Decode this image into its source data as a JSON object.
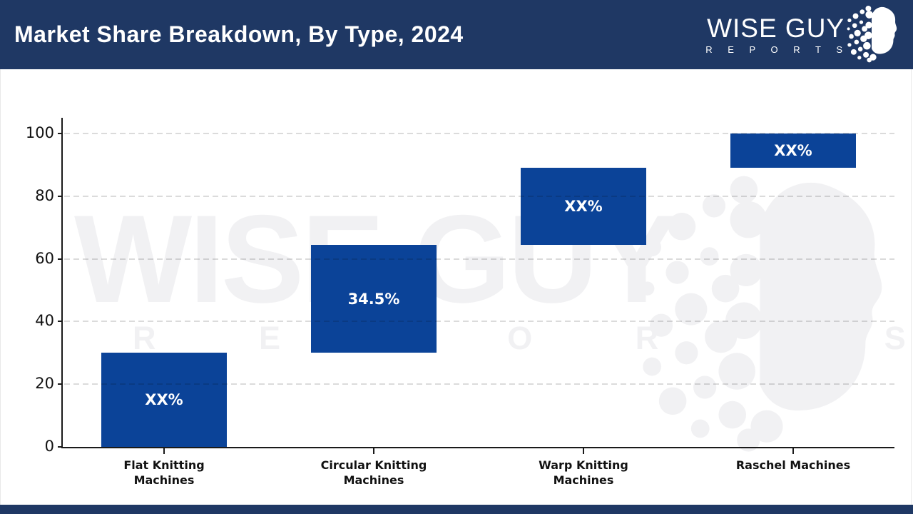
{
  "header": {
    "title": "Market Share Breakdown, By Type, 2024",
    "logo": {
      "name": "WISE GUY",
      "tagline": "R E P O R T S"
    }
  },
  "watermark": {
    "name": "WISE GUY",
    "tagline": "R E P O R T S"
  },
  "chart_data": {
    "type": "bar",
    "subtype": "waterfall",
    "title": "Market Share Breakdown, By Type, 2024",
    "categories": [
      "Flat Knitting Machines",
      "Circular Knitting Machines",
      "Warp Knitting Machines",
      "Raschel Machines"
    ],
    "bars": [
      {
        "category": "Flat Knitting Machines",
        "start": 0,
        "end": 30,
        "label": "XX%"
      },
      {
        "category": "Circular Knitting Machines",
        "start": 30,
        "end": 64.5,
        "label": "34.5%"
      },
      {
        "category": "Warp Knitting Machines",
        "start": 64.5,
        "end": 89,
        "label": "XX%"
      },
      {
        "category": "Raschel Machines",
        "start": 89,
        "end": 100,
        "label": "XX%"
      }
    ],
    "yticks": [
      0,
      20,
      40,
      60,
      80,
      100
    ],
    "ylim": [
      0,
      105
    ],
    "xlabel": "",
    "ylabel": "",
    "grid": "horizontal-dashed-over-bars",
    "legend": "none",
    "bar_color": "#0b4398",
    "bar_label_color": "#ffffff",
    "axis_color": "#1a1a1a",
    "gridline_color": "rgba(0,0,0,0.14)"
  },
  "colors": {
    "header_bg": "#1f3864",
    "footer_bg": "#1f3864",
    "page_bg": "#ffffff",
    "watermark": "#f1f1f3",
    "title_text": "#ffffff"
  }
}
